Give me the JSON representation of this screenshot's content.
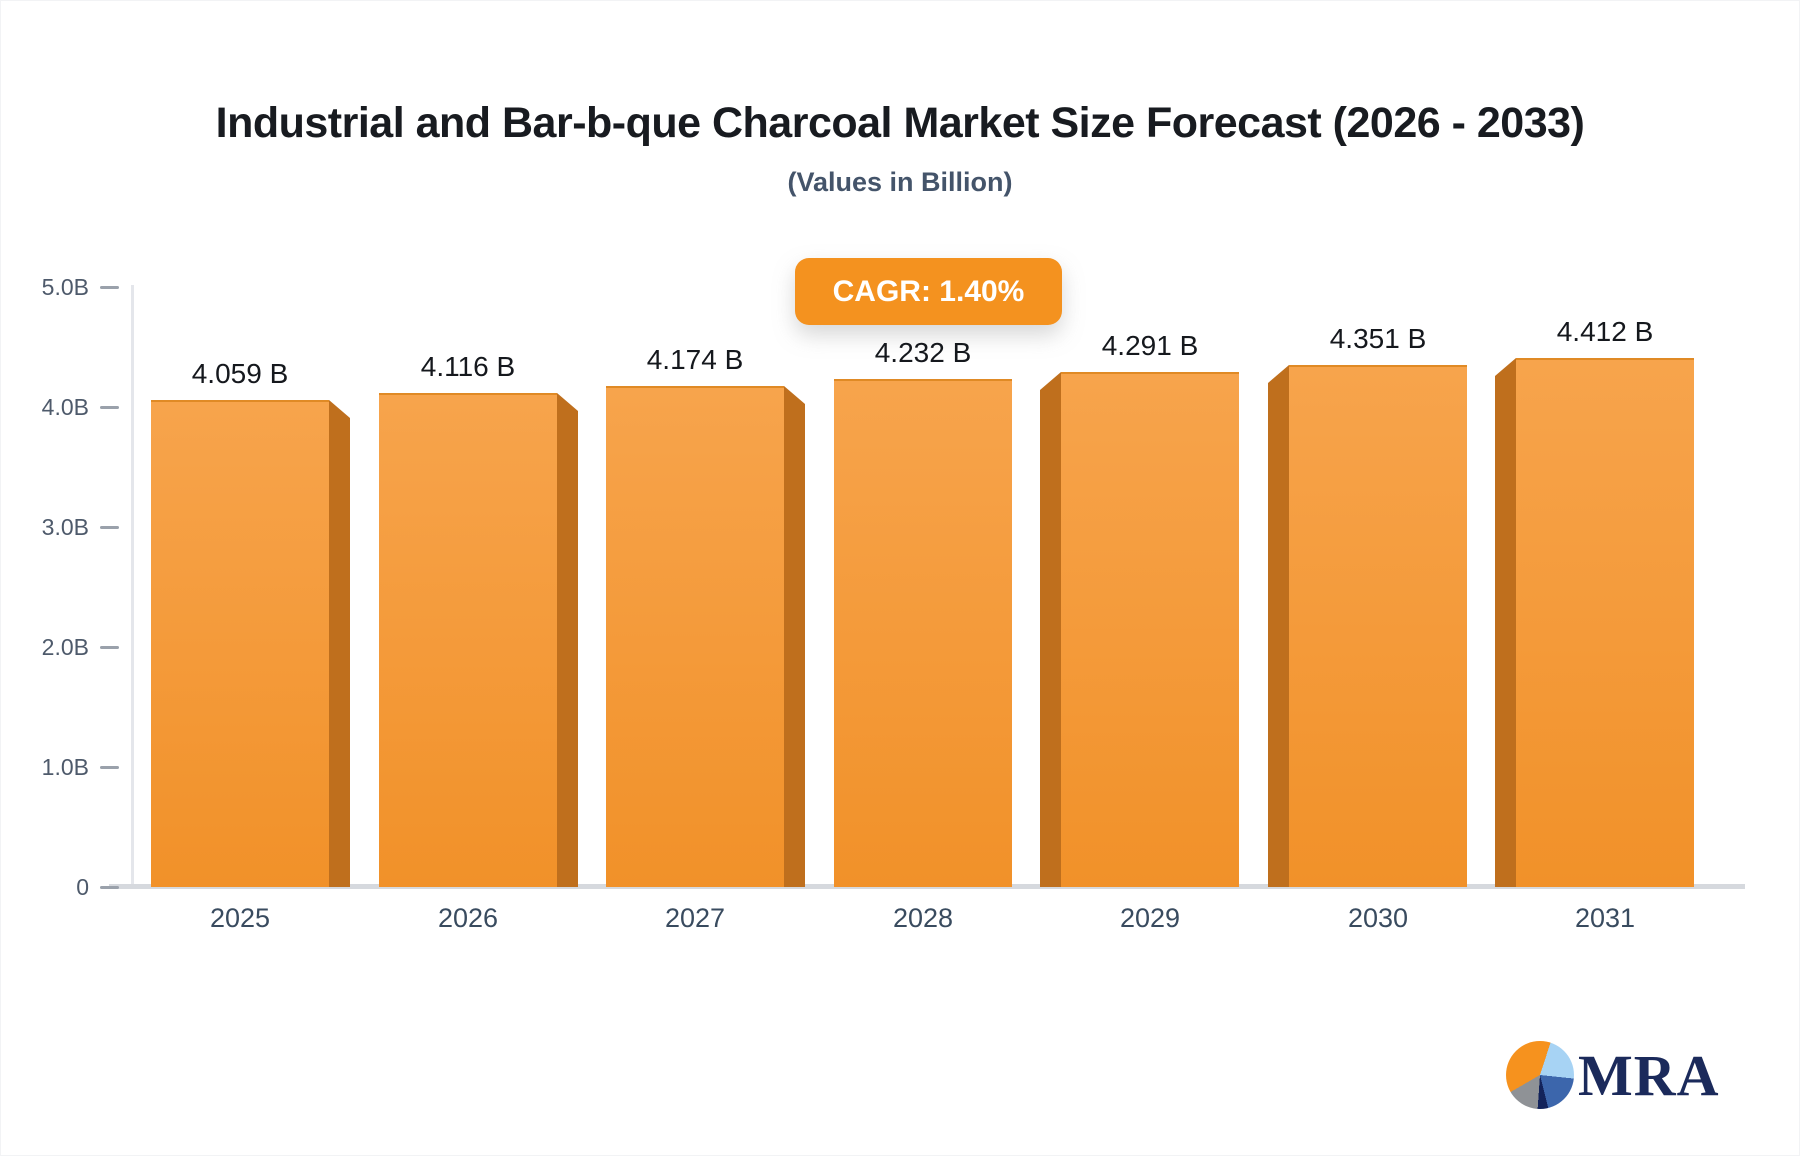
{
  "chart_data": {
    "type": "bar",
    "title": "Industrial and Bar-b-que Charcoal Market Size Forecast (2026 - 2033)",
    "subtitle": "(Values in Billion)",
    "cagr_badge": "CAGR: 1.40%",
    "categories": [
      "2025",
      "2026",
      "2027",
      "2028",
      "2029",
      "2030",
      "2031"
    ],
    "values": [
      4.059,
      4.116,
      4.174,
      4.232,
      4.291,
      4.351,
      4.412
    ],
    "value_labels": [
      "4.059 B",
      "4.116 B",
      "4.174 B",
      "4.232 B",
      "4.291 B",
      "4.351 B",
      "4.412 B"
    ],
    "y_ticks": [
      {
        "label": "5.0B",
        "value": 5
      },
      {
        "label": "4.0B",
        "value": 4
      },
      {
        "label": "3.0B",
        "value": 3
      },
      {
        "label": "2.0B",
        "value": 2
      },
      {
        "label": "1.0B",
        "value": 1
      },
      {
        "label": "0",
        "value": 0
      }
    ],
    "ylim": [
      0,
      5
    ],
    "xlabel": "",
    "ylabel": "",
    "grid": false,
    "legend": false,
    "colors": {
      "bar_face_top": "#F7A44C",
      "bar_face_bottom": "#F19129",
      "bar_side_3d": "#BF6F1D",
      "badge_bg": "#F4921F",
      "badge_text": "#FFFFFF",
      "title_text": "#181B20",
      "subtitle_text": "#44546A",
      "axis_tick_text": "#4E5A6B",
      "category_text": "#394B5F",
      "value_label_text": "#15181D",
      "axis_line": "#E4E6EB",
      "baseline": "#D6D9DE"
    }
  },
  "logo": {
    "text": "MRA",
    "pie_slice_colors": {
      "orange": "#F6921E",
      "light_blue": "#A7D3F4",
      "blue": "#3C66AC",
      "navy": "#13235B",
      "gray": "#8F9296"
    }
  }
}
